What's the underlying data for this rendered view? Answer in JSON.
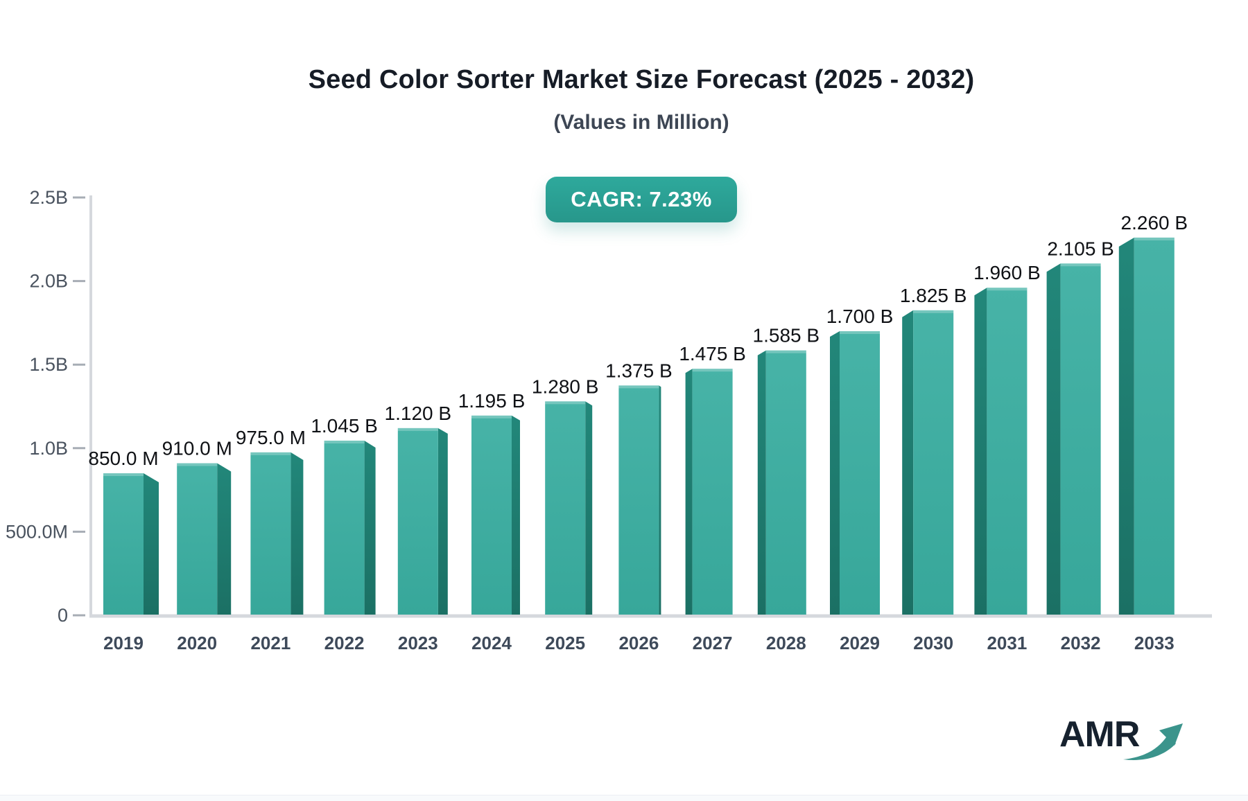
{
  "logo": {
    "text": "AMR"
  },
  "chart_data": {
    "type": "bar",
    "title": "Seed Color Sorter Market Size Forecast (2025 - 2032)",
    "subtitle": "(Values in Million)",
    "annotations": [
      {
        "text": "CAGR: 7.23%"
      }
    ],
    "categories": [
      "2019",
      "2020",
      "2021",
      "2022",
      "2023",
      "2024",
      "2025",
      "2026",
      "2027",
      "2028",
      "2029",
      "2030",
      "2031",
      "2032",
      "2033"
    ],
    "values_millions": [
      850,
      910,
      975,
      1045,
      1120,
      1195,
      1280,
      1375,
      1475,
      1585,
      1700,
      1825,
      1960,
      2105,
      2260
    ],
    "value_labels": [
      "850.0 M",
      "910.0 M",
      "975.0 M",
      "1.045 B",
      "1.120 B",
      "1.195 B",
      "1.280 B",
      "1.375 B",
      "1.475 B",
      "1.585 B",
      "1.700 B",
      "1.825 B",
      "1.960 B",
      "2.105 B",
      "2.260 B"
    ],
    "xlabel": "",
    "ylabel": "",
    "ylim_millions": [
      0,
      2500
    ],
    "yticks": [
      {
        "label": "0",
        "value": 0
      },
      {
        "label": "500.0M",
        "value": 500
      },
      {
        "label": "1.0B",
        "value": 1000
      },
      {
        "label": "1.5B",
        "value": 1500
      },
      {
        "label": "2.0B",
        "value": 2000
      },
      {
        "label": "2.5B",
        "value": 2500
      }
    ],
    "grid": "off",
    "legend": "none",
    "style": "3d-perspective-bars",
    "colors": {
      "bar_front_top": "#47b3a7",
      "bar_front_bottom": "#37a79a",
      "bar_side_top": "#22877a",
      "bar_side_bottom": "#1b7064",
      "bar_top_highlight": "rgba(255,255,255,0.25)",
      "axis_line": "#d5d8dd",
      "tick_dash": "#a7adb5",
      "tick_label": "#49525e",
      "year_label": "#3e4a5a",
      "value_label": "#0f1115",
      "badge_bg": "#2ba195",
      "badge_text": "#ffffff",
      "logo_arrow": "#3b948c"
    }
  }
}
